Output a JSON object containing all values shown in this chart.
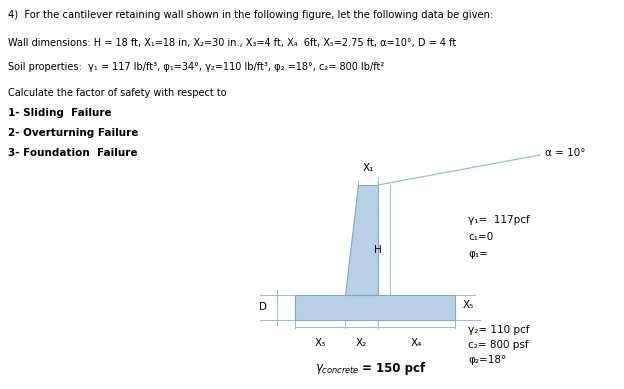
{
  "title_text": "4)  For the cantilever retaining wall shown in the following figure, let the following data be given:",
  "line1": "Wall dimensions: H = 18 ft, X₁=18 in, X₂=30 in., X₃=4 ft, X₄  6ft, X₅=2.75 ft, α=10°, D = 4 ft",
  "line2": "Soil properties:  γ₁ = 117 lb/ft³, φ₁=34°, γ₂=110 lb/ft³, φ₂ =18°, c₂= 800 lb/ft²",
  "line3": "Calculate the factor of safety with respect to",
  "line4": "1- Sliding  Failure",
  "line5": "2- Overturning Failure",
  "line6": "3- Foundation  Failure",
  "wall_color": "#b8d0e8",
  "dim_color": "#9bbdd4",
  "text_color": "#000000",
  "bg_color": "#ffffff",
  "alpha_label": "α = 10°",
  "soil1_label1": "γ₁=  117pcf",
  "soil1_label2": "c₁=0",
  "soil1_label3": "φ₁=",
  "soil2_label1": "γ₂= 110 pcf",
  "soil2_label2": "c₂= 800 psf",
  "soil2_label3": "φ₂=18°",
  "H_label": "H",
  "D_label": "D",
  "X1_label": "X₁",
  "X2_label": "X₂",
  "X3_label": "X₃",
  "X4_label": "X₄",
  "X5_label": "X₅"
}
